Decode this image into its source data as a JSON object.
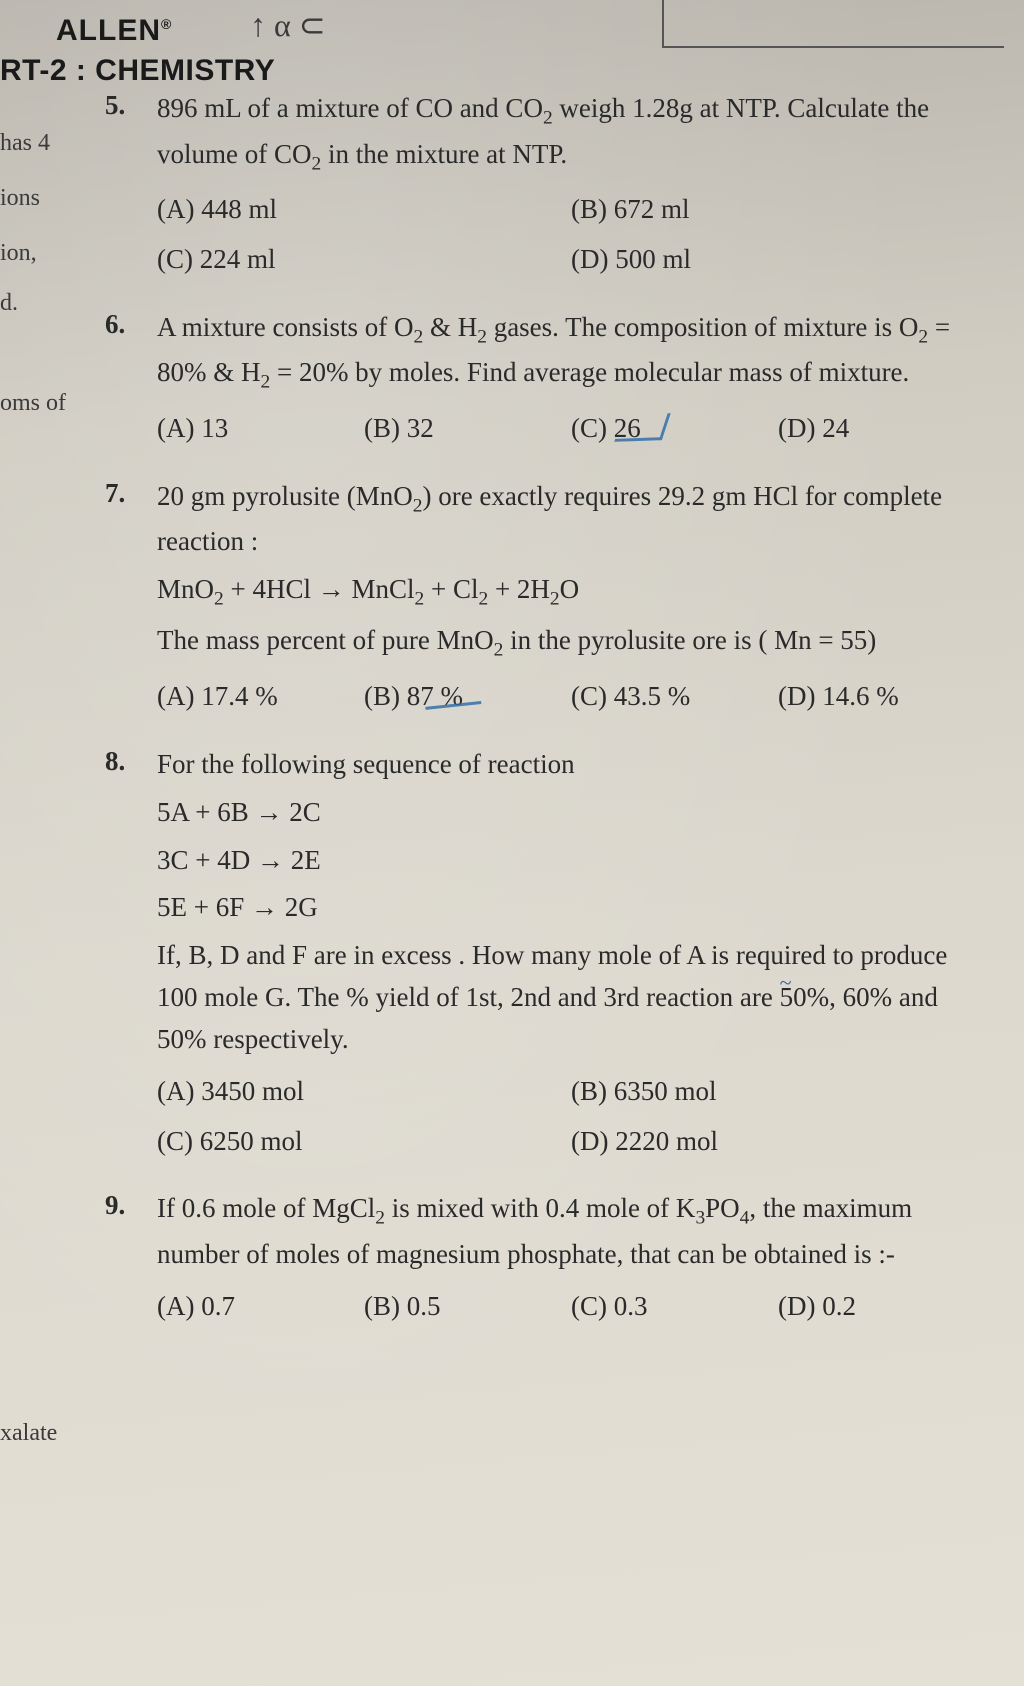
{
  "brand": "ALLEN",
  "brand_reg": "®",
  "subject": "RT-2 : CHEMISTRY",
  "sidebar": {
    "a": "has 4",
    "b": "ions",
    "c": "ion,"
  },
  "side_d": "d.",
  "side_oms": "oms of",
  "side_xalate": "xalate",
  "q5": {
    "num": "5.",
    "text_a": "896 mL of a mixture of CO and CO",
    "text_b": " weigh 1.28g at NTP. Calculate the volume of CO",
    "text_c": " in the mixture at NTP.",
    "optA": "(A) 448 ml",
    "optB": "(B) 672 ml",
    "optC": "(C) 224 ml",
    "optD": "(D) 500 ml"
  },
  "q6": {
    "num": "6.",
    "text_a": "A mixture consists of O",
    "text_b": " & H",
    "text_c": " gases. The composition of mixture is O",
    "text_d": " = 80% & H",
    "text_e": " = 20% by moles. Find average molecular mass of mixture.",
    "optA": "(A) 13",
    "optB": "(B) 32",
    "optC": "(C) 26",
    "optD": "(D) 24"
  },
  "q7": {
    "num": "7.",
    "text_a": "20 gm pyrolusite (MnO",
    "text_b": ") ore exactly requires 29.2 gm HCl for complete reaction :",
    "eq_a": "MnO",
    "eq_b": " + 4HCl → MnCl",
    "eq_c": " + Cl",
    "eq_d": " + 2H",
    "eq_e": "O",
    "text_c": "The mass percent of pure MnO",
    "text_d": " in the pyrolusite ore is ( Mn = 55)",
    "optA": "(A) 17.4 %",
    "optB": "(B) 87 %",
    "optC": "(C) 43.5 %",
    "optD": "(D) 14.6 %"
  },
  "q8": {
    "num": "8.",
    "text_a": "For the following sequence of reaction",
    "eq1": "5A + 6B → 2C",
    "eq2": "3C + 4D → 2E",
    "eq3": "5E + 6F → 2G",
    "text_b": "If, B, D and F are in excess . How many mole of A is required to produce 100 mole G. The % yield of 1st, 2nd and 3rd reaction are ",
    "fifty": "50%",
    "text_c": ", 60% and 50% respectively.",
    "optA": "(A) 3450 mol",
    "optB": "(B) 6350 mol",
    "optC": "(C) 6250 mol",
    "optD": "(D) 2220 mol"
  },
  "q9": {
    "num": "9.",
    "text_a": "If 0.6 mole of MgCl",
    "text_b": " is mixed with 0.4 mole of K",
    "text_c": "PO",
    "text_d": ", the maximum number of moles of magnesium phosphate, that can be obtained is :-",
    "optA": "(A) 0.7",
    "optB": "(B) 0.5",
    "optC": "(C) 0.3",
    "optD": "(D) 0.2"
  }
}
